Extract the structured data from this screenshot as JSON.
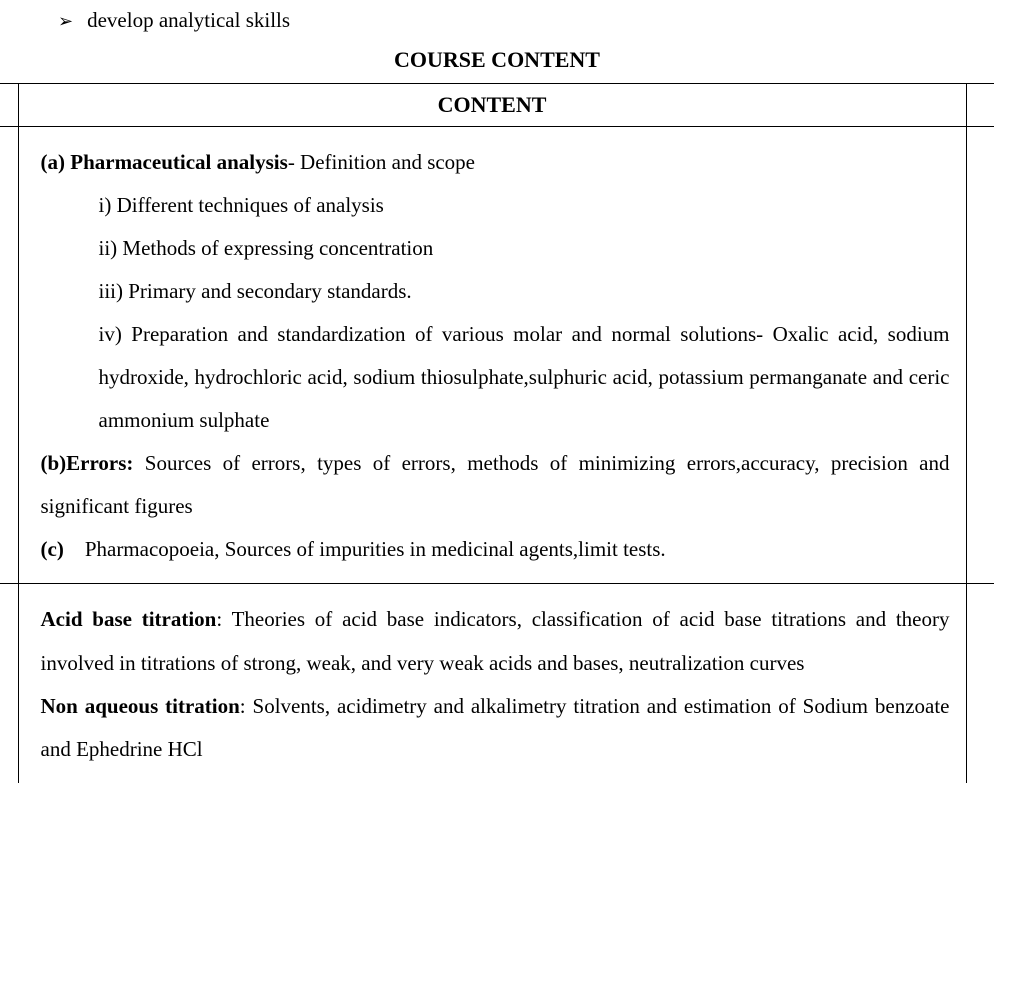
{
  "top_bullet": {
    "marker": "➢",
    "text": "develop analytical skills"
  },
  "heading": "COURSE CONTENT",
  "table": {
    "header": "CONTENT",
    "row1": {
      "a": {
        "label": "(a) Pharmaceutical analysis",
        "tail": "- Definition and scope",
        "items": {
          "i": "i) Different techniques of analysis",
          "ii": "ii) Methods of expressing concentration",
          "iii": "iii) Primary and secondary standards.",
          "iv": "iv) Preparation and standardization of various molar and normal solutions- Oxalic acid, sodium hydroxide, hydrochloric acid, sodium thiosulphate,sulphuric acid, potassium permanganate and ceric ammonium sulphate"
        }
      },
      "b": {
        "label": "(b)Errors:",
        "text": " Sources of errors, types of errors, methods of minimizing errors,accuracy, precision and significant figures"
      },
      "c": {
        "label": "(c)",
        "text": "    Pharmacopoeia, Sources of impurities in medicinal agents,limit tests."
      }
    },
    "row2": {
      "p1": {
        "label": "Acid base titration",
        "text": ": Theories of acid base indicators, classification of acid base titrations and theory involved in titrations of strong, weak, and very weak acids and bases, neutralization curves"
      },
      "p2": {
        "label": "Non aqueous titration",
        "text": ": Solvents, acidimetry and alkalimetry titration and estimation of Sodium benzoate and Ephedrine HCl"
      }
    }
  }
}
